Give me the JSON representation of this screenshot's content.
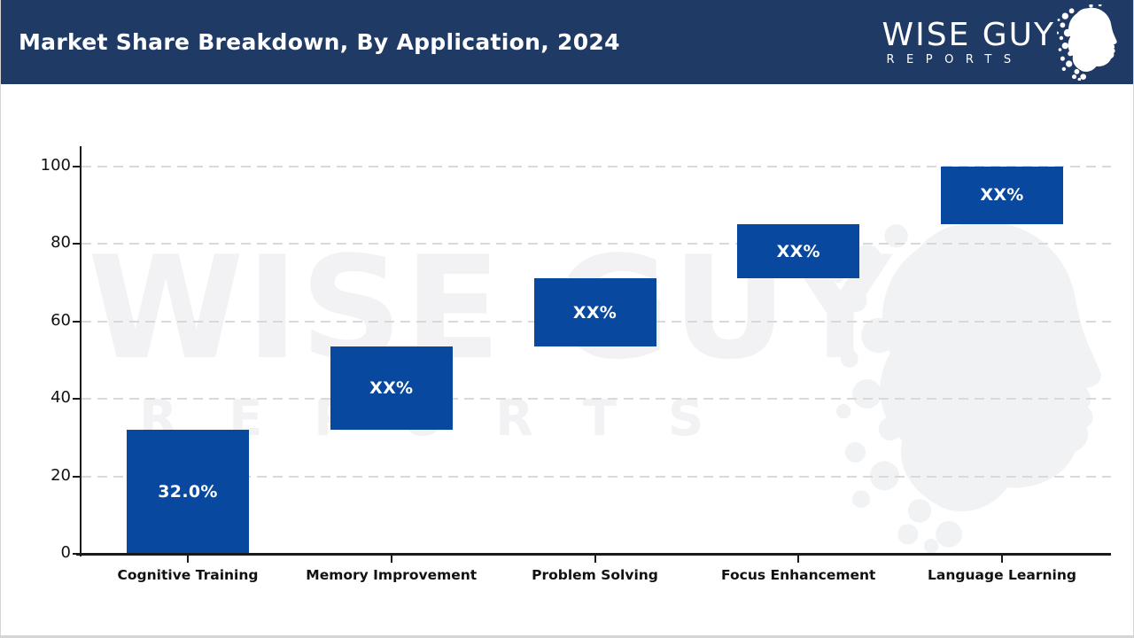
{
  "header": {
    "title": "Market Share Breakdown, By Application, 2024",
    "logo": {
      "brand_top": "WISE GUY",
      "brand_bottom": "REPORTS"
    }
  },
  "watermark": {
    "line1": "WISE GUY",
    "line2": "REPORTS"
  },
  "chart_data": {
    "type": "bar",
    "variant": "waterfall",
    "title": "Market Share Breakdown, By Application, 2024",
    "categories": [
      "Cognitive Training",
      "Memory Improvement",
      "Problem Solving",
      "Focus Enhancement",
      "Language Learning"
    ],
    "segments": [
      {
        "category": "Cognitive Training",
        "start": 0,
        "end": 32,
        "label": "32.0%"
      },
      {
        "category": "Memory Improvement",
        "start": 32,
        "end": 53.5,
        "label": "XX%"
      },
      {
        "category": "Problem Solving",
        "start": 53.5,
        "end": 71,
        "label": "XX%"
      },
      {
        "category": "Focus Enhancement",
        "start": 71,
        "end": 85,
        "label": "XX%"
      },
      {
        "category": "Language Learning",
        "start": 85,
        "end": 100,
        "label": "XX%"
      }
    ],
    "xlabel": "",
    "ylabel": "",
    "ylim": [
      0,
      100
    ],
    "yticks": [
      "0",
      "20",
      "40",
      "60",
      "80",
      "100"
    ],
    "grid": "horizontal-dashed",
    "legend": "none",
    "bar_color": "#08489e",
    "value_label_color": "#ffffff",
    "header_bg_color": "#203a66",
    "grid_color": "#d9d9d9"
  }
}
